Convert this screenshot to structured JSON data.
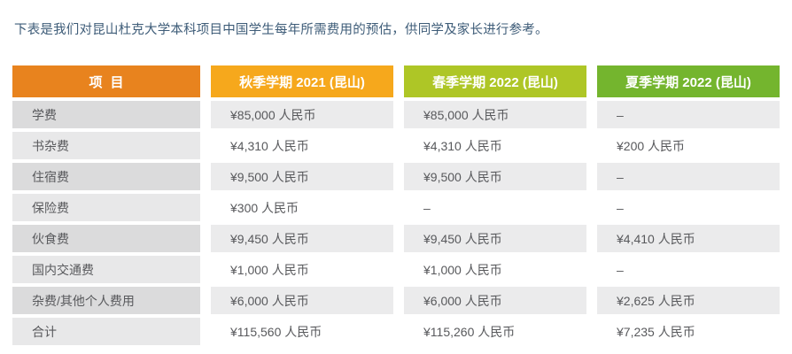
{
  "intro": {
    "text": "下表是我们对昆山杜克大学本科项目中国学生每年所需费用的预估，供同学及家长进行参考。",
    "color": "#3e5c78"
  },
  "table": {
    "headers": [
      {
        "label": "项目",
        "color": "#e8831e"
      },
      {
        "label": "秋季学期 2021 (昆山)",
        "color": "#f6a81c"
      },
      {
        "label": "春季学期 2022 (昆山)",
        "color": "#aec626"
      },
      {
        "label": "夏季学期 2022 (昆山)",
        "color": "#74b52e"
      }
    ],
    "rows": [
      {
        "label": "学费",
        "fall": "¥85,000 人民币",
        "spring": "¥85,000 人民币",
        "summer": "–"
      },
      {
        "label": "书杂费",
        "fall": "¥4,310 人民币",
        "spring": "¥4,310 人民币",
        "summer": "¥200 人民币"
      },
      {
        "label": "住宿费",
        "fall": "¥9,500 人民币",
        "spring": "¥9,500 人民币",
        "summer": "–"
      },
      {
        "label": "保险费",
        "fall": "¥300 人民币",
        "spring": "–",
        "summer": "–"
      },
      {
        "label": "伙食费",
        "fall": "¥9,450 人民币",
        "spring": "¥9,450 人民币",
        "summer": "¥4,410 人民币"
      },
      {
        "label": "国内交通费",
        "fall": "¥1,000 人民币",
        "spring": "¥1,000 人民币",
        "summer": "–"
      },
      {
        "label": "杂费/其他个人费用",
        "fall": "¥6,000 人民币",
        "spring": "¥6,000 人民币",
        "summer": "¥2,625 人民币"
      },
      {
        "label": "合计",
        "fall": "¥115,560 人民币",
        "spring": "¥115,260 人民币",
        "summer": "¥7,235 人民币"
      }
    ],
    "stripe_colors": {
      "label_odd": "#dbdbdc",
      "label_even": "#e8e8e9",
      "value_odd": "#ebebec",
      "value_even": "#ffffff",
      "text": "#58595c"
    }
  }
}
